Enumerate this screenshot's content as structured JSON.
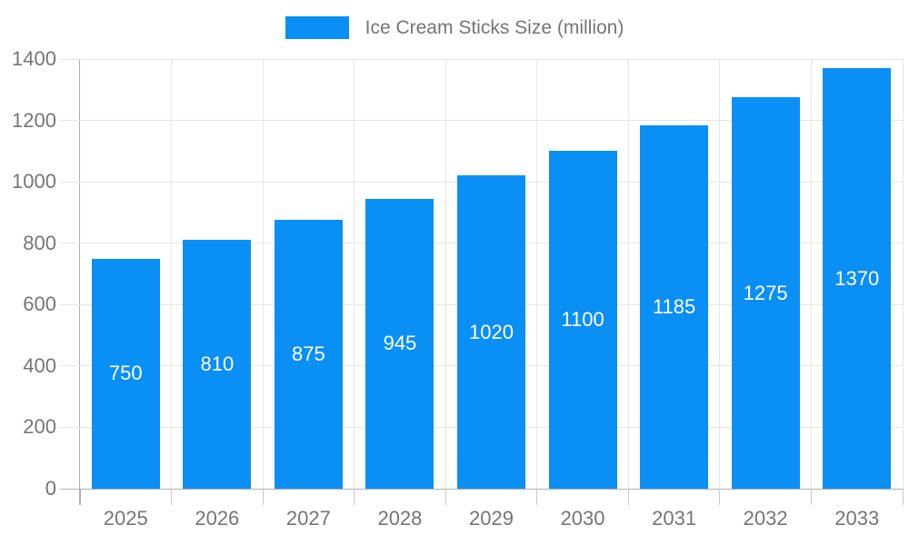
{
  "legend": {
    "label": "Ice Cream Sticks Size (million)"
  },
  "colors": {
    "bar": "#0a8ff4",
    "axis_text": "#757575",
    "grid_line": "#e6e6e6",
    "axis_line": "#b0b0b0",
    "tick_line": "#c9c9c9",
    "value_text": "#ffffff",
    "background": "#ffffff"
  },
  "chart_data": {
    "type": "bar",
    "title": "Ice Cream Sticks Size (million)",
    "categories": [
      "2025",
      "2026",
      "2027",
      "2028",
      "2029",
      "2030",
      "2031",
      "2032",
      "2033"
    ],
    "values": [
      750,
      810,
      875,
      945,
      1020,
      1100,
      1185,
      1275,
      1370
    ],
    "xlabel": "",
    "ylabel": "",
    "ylim": [
      0,
      1400
    ],
    "yticks": [
      0,
      200,
      400,
      600,
      800,
      1000,
      1200,
      1400
    ],
    "grid": true,
    "legend_position": "top-center",
    "bar_labels_inside": true
  }
}
